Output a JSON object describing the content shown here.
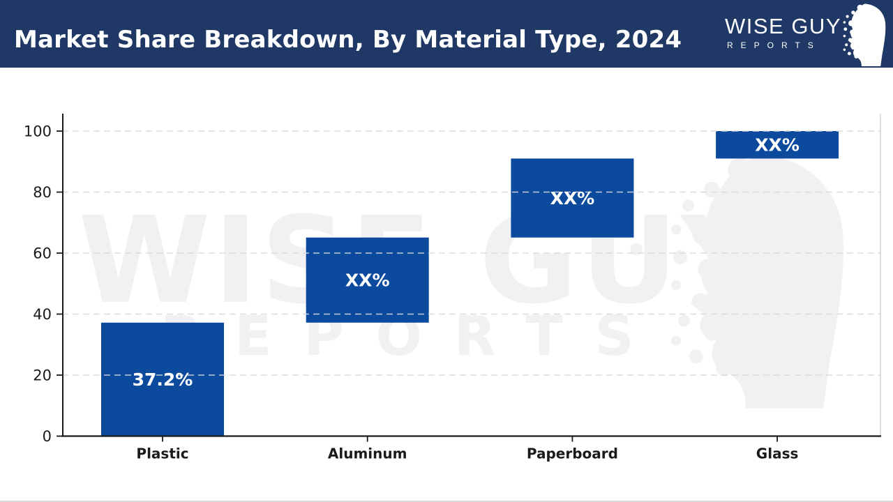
{
  "header": {
    "title": "Market Share Breakdown, By Material Type, 2024"
  },
  "logo": {
    "wordmark": "WISE GUY",
    "subtext": "REPORTS"
  },
  "watermark": {
    "line1": "WISE GUY",
    "line2": "REPORTS"
  },
  "colors": {
    "header_bg": "#1F3865",
    "bar": "#0C4A9E",
    "bar_label": "#ffffff",
    "grid": "#d8d8d8",
    "axis": "#1a1a1a",
    "tick_label": "#1a1a1a",
    "right_spine": "#cccccc",
    "watermark": "#f1f1f3",
    "footer_line": "#d9d9d9"
  },
  "chart_data": {
    "type": "bar",
    "subtype": "floating-waterfall",
    "title": "Market Share Breakdown, By Material Type, 2024",
    "categories": [
      "Plastic",
      "Aluminum",
      "Paperboard",
      "Glass"
    ],
    "segments": [
      {
        "category": "Plastic",
        "start": 0,
        "end": 37.2,
        "label": "37.2%"
      },
      {
        "category": "Aluminum",
        "start": 37.2,
        "end": 65.1,
        "label": "XX%"
      },
      {
        "category": "Paperboard",
        "start": 65.1,
        "end": 91.0,
        "label": "XX%"
      },
      {
        "category": "Glass",
        "start": 91.0,
        "end": 100.0,
        "label": "XX%"
      }
    ],
    "xlabel": "",
    "ylabel": "",
    "yticks": [
      0,
      20,
      40,
      60,
      80,
      100
    ],
    "ylim": [
      0,
      105
    ],
    "grid": "horizontal-dashed",
    "legend": "none"
  }
}
